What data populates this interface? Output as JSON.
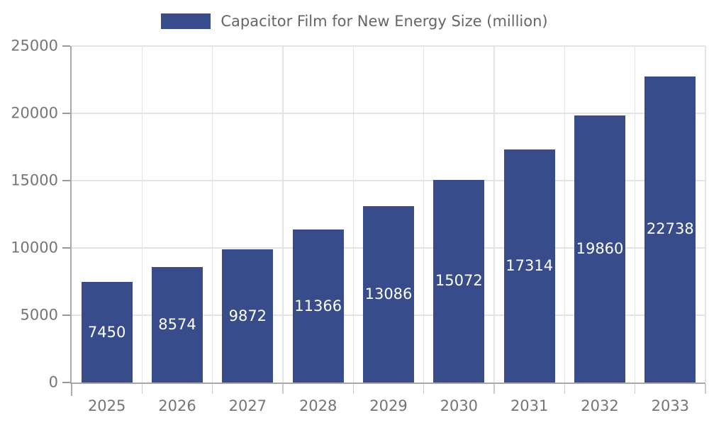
{
  "legend": {
    "label": "Capacitor Film for New Energy Size (million)"
  },
  "chart_data": {
    "type": "bar",
    "title": "Capacitor Film for New Energy Size (million)",
    "categories": [
      "2025",
      "2026",
      "2027",
      "2028",
      "2029",
      "2030",
      "2031",
      "2032",
      "2033"
    ],
    "values": [
      7450,
      8574,
      9872,
      11366,
      13086,
      15072,
      17314,
      19860,
      22738
    ],
    "xlabel": "",
    "ylabel": "",
    "ylim": [
      0,
      25000
    ],
    "yticks": [
      0,
      5000,
      10000,
      15000,
      20000,
      25000
    ],
    "grid": true,
    "legend_position": "top",
    "colors": {
      "bar": "#384C8C",
      "value_label": "#ffffff",
      "axis_line": "#a8a8a8",
      "gridline": "#e4e4e4",
      "tick_text": "#757575",
      "legend_text": "#666666"
    }
  }
}
